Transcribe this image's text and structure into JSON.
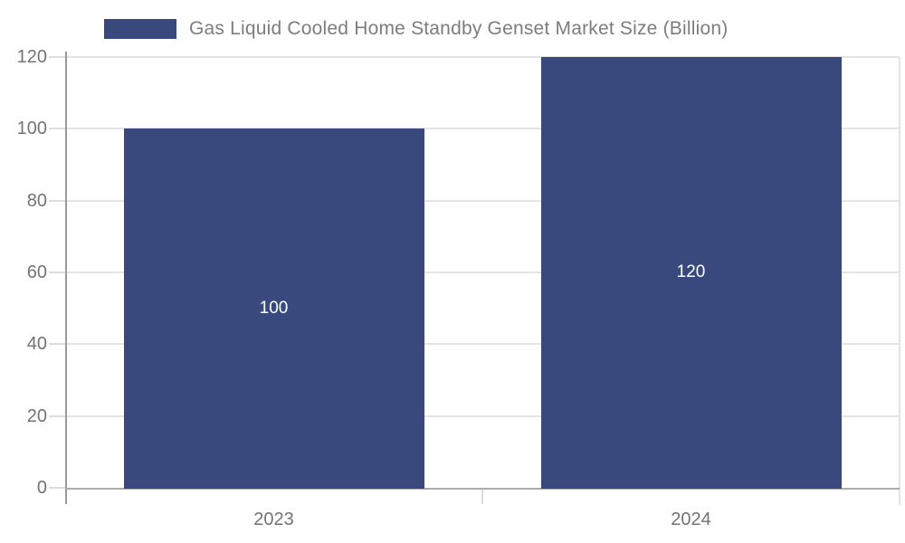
{
  "canvas": {
    "background": "#ffffff"
  },
  "legend": {
    "label": "Gas Liquid Cooled Home Standby Genset Market Size (Billion)",
    "swatch_color": "#39497D",
    "text_color": "#7d7d7d",
    "position": "top-left"
  },
  "chart_data": {
    "type": "bar",
    "title": "Gas Liquid Cooled Home Standby Genset Market Size (Billion)",
    "series_name": "Gas Liquid Cooled Home Standby Genset Market Size (Billion)",
    "categories": [
      "2023",
      "2024"
    ],
    "values": [
      100,
      120
    ],
    "data_labels": [
      "100",
      "120"
    ],
    "xlabel": "",
    "ylabel": "",
    "ylim": [
      0,
      120
    ],
    "yticks": [
      0,
      20,
      40,
      60,
      80,
      100,
      120
    ],
    "ytick_labels": [
      "0",
      "20",
      "40",
      "60",
      "80",
      "100",
      "120"
    ],
    "grid": "horizontal",
    "legend_position": "top",
    "bar_color": "#39497D",
    "data_label_color": "#ffffff",
    "axis_text_color": "#737373",
    "gridline_color": "#e4e4e4",
    "axis_line_color": "#9a9a9a"
  }
}
